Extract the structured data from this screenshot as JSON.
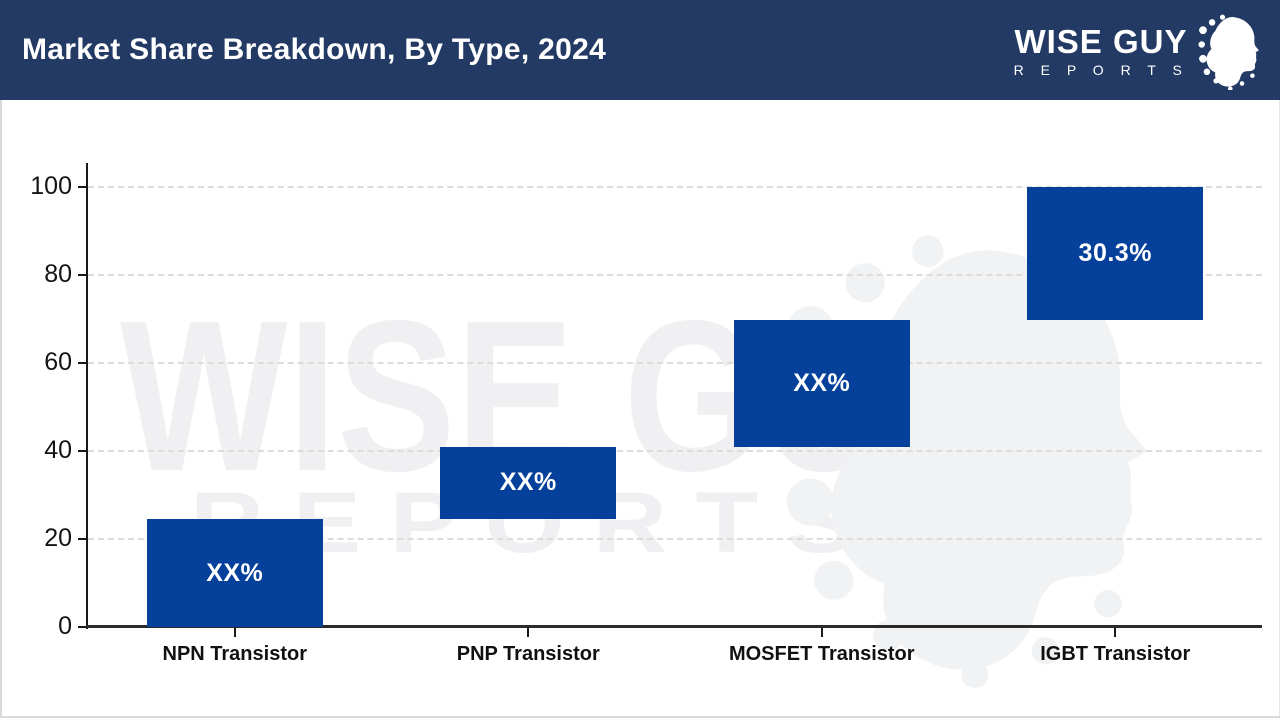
{
  "header": {
    "title": "Market Share Breakdown, By Type, 2024",
    "logo_line1": "WISE GUY",
    "logo_line2": "R E P O R T S",
    "bg_color": "#233a64"
  },
  "watermark": {
    "line1": "WISE GU",
    "line2": "R E P O R T S"
  },
  "chart_data": {
    "type": "bar",
    "subtype": "waterfall",
    "title": "Market Share Breakdown, By Type, 2024",
    "categories": [
      "NPN Transistor",
      "PNP Transistor",
      "MOSFET Transistor",
      "IGBT Transistor"
    ],
    "segments": [
      {
        "category": "NPN Transistor",
        "start": 0,
        "end": 24.5,
        "label": "XX%"
      },
      {
        "category": "PNP Transistor",
        "start": 24.5,
        "end": 41,
        "label": "XX%"
      },
      {
        "category": "MOSFET Transistor",
        "start": 41,
        "end": 69.7,
        "label": "XX%"
      },
      {
        "category": "IGBT Transistor",
        "start": 69.7,
        "end": 100,
        "label": "30.3%"
      }
    ],
    "ylim": [
      0,
      100
    ],
    "yticks": [
      0,
      20,
      40,
      60,
      80,
      100
    ],
    "grid": "horizontal-dashed",
    "legend": "none",
    "bar_color": "#05419b",
    "bar_label_color": "#ffffff",
    "axis_color": "#1a1a1a"
  }
}
